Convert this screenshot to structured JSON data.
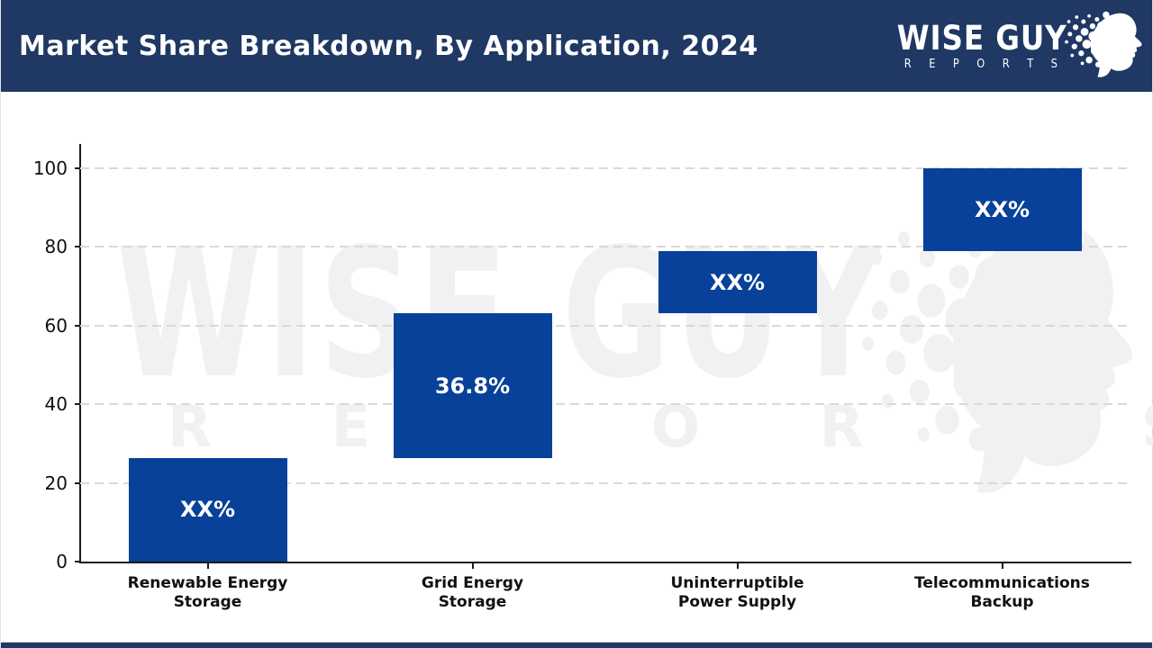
{
  "header": {
    "title": "Market Share Breakdown, By Application, 2024",
    "logo": {
      "line1": "WISE GUY",
      "line2": "R E P O R T S"
    }
  },
  "watermark": {
    "line1": "WISE GUY",
    "line2": "R E P O R T S"
  },
  "icons": {
    "logo_face": "dotted-head-profile"
  },
  "colors": {
    "header_bg": "#1f3864",
    "bar": "#07419a",
    "grid": "#d9d9d9",
    "axis": "#1a1a1a",
    "bar_label": "#ffffff",
    "watermark": "#f1f1f4"
  },
  "chart_data": {
    "type": "bar",
    "subtype": "waterfall",
    "title": "Market Share Breakdown, By Application, 2024",
    "categories": [
      "Renewable Energy\nStorage",
      "Grid Energy\nStorage",
      "Uninterruptible\nPower Supply",
      "Telecommunications\nBackup"
    ],
    "segments": [
      {
        "start": 0,
        "end": 26.3,
        "label": "XX%"
      },
      {
        "start": 26.3,
        "end": 63.1,
        "label": "36.8%"
      },
      {
        "start": 63.1,
        "end": 78.8,
        "label": "XX%"
      },
      {
        "start": 78.8,
        "end": 100,
        "label": "XX%"
      }
    ],
    "ylim": [
      0,
      100
    ],
    "yticks": [
      0,
      20,
      40,
      60,
      80,
      100
    ],
    "grid": "horizontal-dashed",
    "legend": "none"
  }
}
